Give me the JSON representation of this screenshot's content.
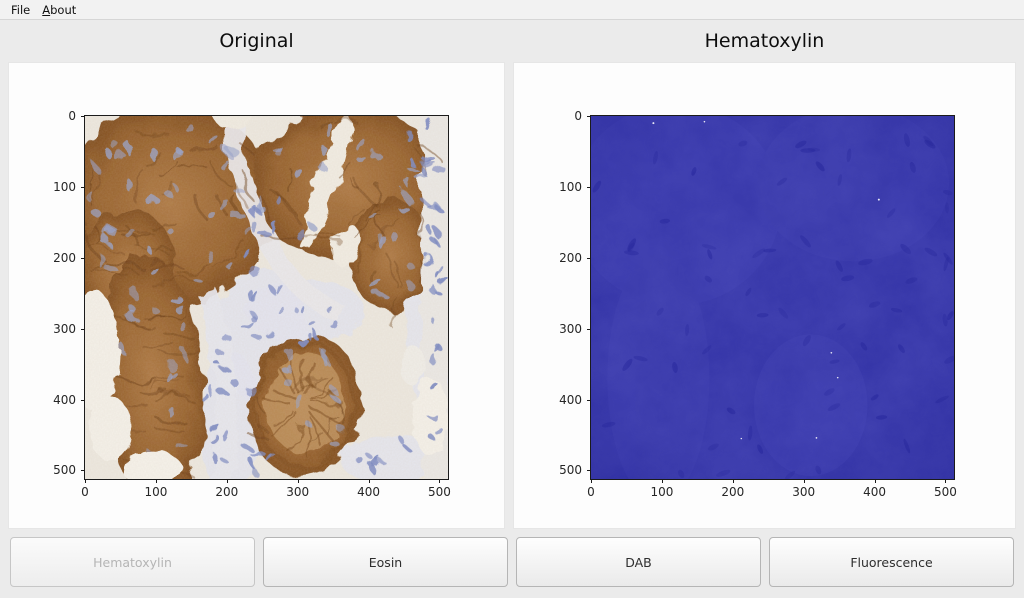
{
  "menu_bar": {
    "items": [
      {
        "label": "File",
        "underline_first": false
      },
      {
        "label": "About",
        "underline_first": true
      }
    ]
  },
  "panels": [
    {
      "title": "Original"
    },
    {
      "title": "Hematoxylin"
    }
  ],
  "axes": {
    "x_ticks": [
      0,
      100,
      200,
      300,
      400,
      500
    ],
    "y_ticks": [
      0,
      100,
      200,
      300,
      400,
      500
    ],
    "domain": 512
  },
  "buttons": [
    {
      "label": "Hematoxylin",
      "disabled": true
    },
    {
      "label": "Eosin",
      "disabled": false
    },
    {
      "label": "DAB",
      "disabled": false
    },
    {
      "label": "Fluorescence",
      "disabled": false
    }
  ],
  "colors": {
    "window_background": "#ebebeb",
    "panel_background": "#fdfdfd",
    "dab_brown": "#9a6632",
    "tissue_background": "#ece7de",
    "nucleus_blue": "#8090c4",
    "hematoxylin_blue": "#3636a8",
    "axis_color": "#1b1b1b",
    "disabled_text": "#b5b5b5"
  }
}
